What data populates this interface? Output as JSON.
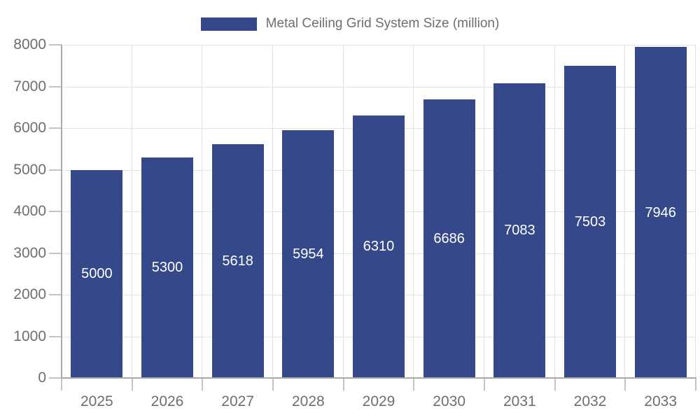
{
  "legend": {
    "label": "Metal Ceiling Grid System Size (million)",
    "swatch_color": "#35498A"
  },
  "chart_data": {
    "type": "bar",
    "title": "Metal Ceiling Grid System Size (million)",
    "categories": [
      "2025",
      "2026",
      "2027",
      "2028",
      "2029",
      "2030",
      "2031",
      "2032",
      "2033"
    ],
    "values": [
      5000,
      5300,
      5618,
      5954,
      6310,
      6686,
      7083,
      7503,
      7946
    ],
    "series_name": "Metal Ceiling Grid System Size (million)",
    "xlabel": "",
    "ylabel": "",
    "ylim": [
      0,
      8000
    ],
    "ytick_step": 1000,
    "ytick_labels": [
      "0",
      "1000",
      "2000",
      "3000",
      "4000",
      "5000",
      "6000",
      "7000",
      "8000"
    ],
    "grid": true,
    "legend_position": "top",
    "bar_color": "#35498A",
    "value_label_color": "#ffffff",
    "grid_color": "#e2e2e2",
    "axis_color": "#a9a9a9",
    "tick_color": "#c4c4c4",
    "tick_label_color": "#6e6e6e"
  }
}
